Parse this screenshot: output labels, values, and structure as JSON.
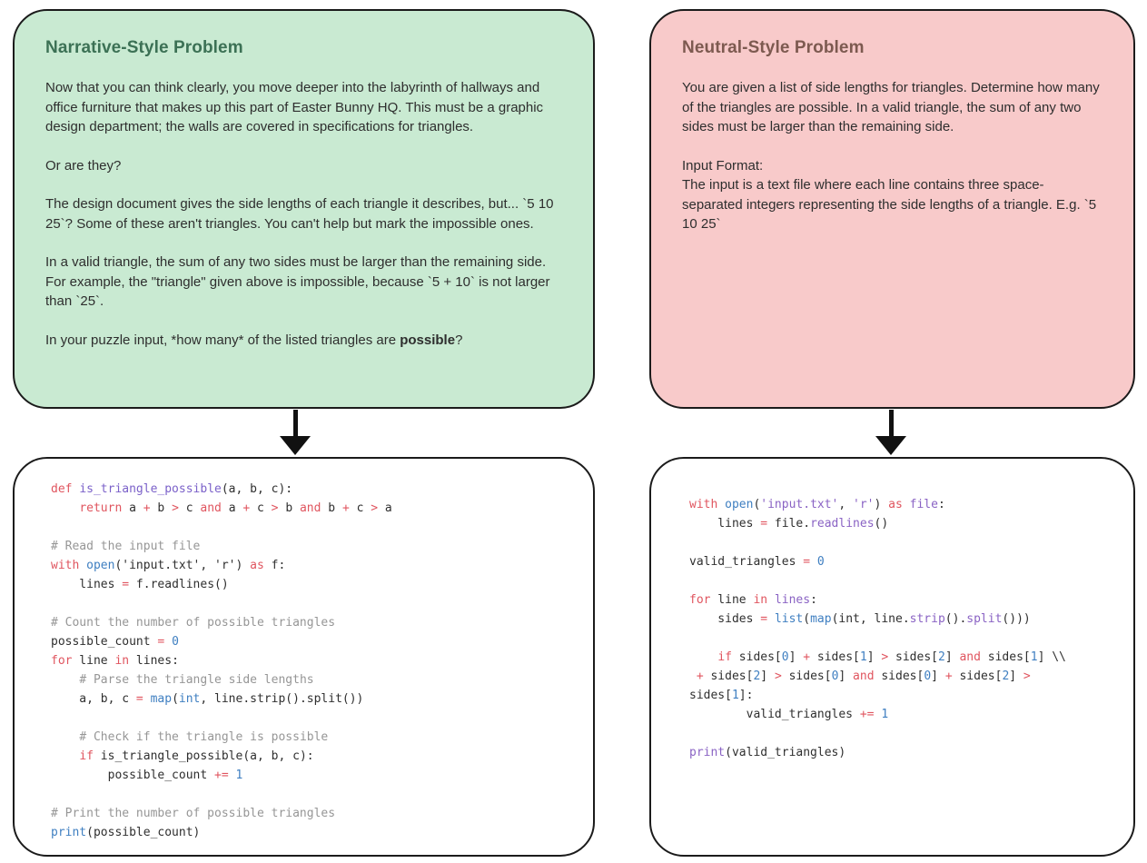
{
  "colors": {
    "narrative_panel_bg": "#c9ead2",
    "narrative_title": "#3c7155",
    "neutral_panel_bg": "#f8caca",
    "neutral_title": "#7d5a50",
    "body_text": "#2e2e2e",
    "panel_border": "#1b1b1b",
    "code_keyword_red": "#e0555f",
    "code_builtin_blue": "#3f7fc1",
    "code_purple": "#8a63c4",
    "code_comment_gray": "#969696",
    "code_default": "#2f2f2f",
    "arrow_black": "#111111"
  },
  "narrative_panel": {
    "title": "Narrative-Style Problem",
    "paragraphs": [
      [
        {
          "t": "Now that you can think clearly, you move deeper into the labyrinth of hallways and office furniture that makes up this part of Easter Bunny HQ. This must be a graphic design department; the walls are covered in specifications for triangles."
        }
      ],
      [
        {
          "t": "Or are they?"
        }
      ],
      [
        {
          "t": "The design document gives the side lengths of each triangle it describes, but... `5 10 25`? Some of these aren't triangles. You can't help but mark the impossible ones."
        }
      ],
      [
        {
          "t": "In a valid triangle, the sum of any two sides must be larger than the remaining side. For example, the \"triangle\" given above is impossible, because `5 + 10` is not larger than `25`."
        }
      ],
      [
        {
          "t": "In your puzzle input, *how many* of the listed triangles are "
        },
        {
          "t": "possible",
          "b": true
        },
        {
          "t": "?"
        }
      ]
    ]
  },
  "neutral_panel": {
    "title": "Neutral-Style Problem",
    "paragraphs": [
      [
        {
          "t": "You are given a list of side lengths for triangles. Determine how many of the triangles are possible. In a valid triangle, the sum of any two sides must be larger than the remaining side."
        }
      ],
      [
        {
          "t": "Input Format:"
        },
        {
          "br": true
        },
        {
          "t": "The input is a text file where each line contains three space-separated integers representing the side lengths of a triangle. E.g. `5  10  25`"
        }
      ]
    ]
  },
  "narrative_code": {
    "lines": [
      [
        [
          "kw",
          "def"
        ],
        [
          "plain",
          " "
        ],
        [
          "def",
          "is_triangle_possible"
        ],
        [
          "plain",
          "(a, b, c):"
        ]
      ],
      [
        [
          "plain",
          "    "
        ],
        [
          "kw",
          "return"
        ],
        [
          "plain",
          " a "
        ],
        [
          "kw",
          "+"
        ],
        [
          "plain",
          " b "
        ],
        [
          "kw",
          ">"
        ],
        [
          "plain",
          " c "
        ],
        [
          "kw",
          "and"
        ],
        [
          "plain",
          " a "
        ],
        [
          "kw",
          "+"
        ],
        [
          "plain",
          " c "
        ],
        [
          "kw",
          ">"
        ],
        [
          "plain",
          " b "
        ],
        [
          "kw",
          "and"
        ],
        [
          "plain",
          " b "
        ],
        [
          "kw",
          "+"
        ],
        [
          "plain",
          " c "
        ],
        [
          "kw",
          ">"
        ],
        [
          "plain",
          " a"
        ]
      ],
      [],
      [
        [
          "com",
          "# Read the input file"
        ]
      ],
      [
        [
          "kw",
          "with"
        ],
        [
          "plain",
          " "
        ],
        [
          "fn",
          "open"
        ],
        [
          "plain",
          "('input.txt', 'r') "
        ],
        [
          "kw",
          "as"
        ],
        [
          "plain",
          " f:"
        ]
      ],
      [
        [
          "plain",
          "    lines "
        ],
        [
          "kw",
          "="
        ],
        [
          "plain",
          " f.readlines()"
        ]
      ],
      [],
      [
        [
          "com",
          "# Count the number of possible triangles"
        ]
      ],
      [
        [
          "plain",
          "possible_count "
        ],
        [
          "kw",
          "="
        ],
        [
          "plain",
          " "
        ],
        [
          "num",
          "0"
        ]
      ],
      [
        [
          "kw",
          "for"
        ],
        [
          "plain",
          " line "
        ],
        [
          "kw",
          "in"
        ],
        [
          "plain",
          " lines:"
        ]
      ],
      [
        [
          "plain",
          "    "
        ],
        [
          "com",
          "# Parse the triangle side lengths"
        ]
      ],
      [
        [
          "plain",
          "    a, b, c "
        ],
        [
          "kw",
          "="
        ],
        [
          "plain",
          " "
        ],
        [
          "fn",
          "map"
        ],
        [
          "plain",
          "("
        ],
        [
          "fn",
          "int"
        ],
        [
          "plain",
          ", line.strip().split())"
        ]
      ],
      [],
      [
        [
          "plain",
          "    "
        ],
        [
          "com",
          "# Check if the triangle is possible"
        ]
      ],
      [
        [
          "plain",
          "    "
        ],
        [
          "kw",
          "if"
        ],
        [
          "plain",
          " is_triangle_possible(a, b, c):"
        ]
      ],
      [
        [
          "plain",
          "        possible_count "
        ],
        [
          "kw",
          "+="
        ],
        [
          "plain",
          " "
        ],
        [
          "num",
          "1"
        ]
      ],
      [],
      [
        [
          "com",
          "# Print the number of possible triangles"
        ]
      ],
      [
        [
          "fn",
          "print"
        ],
        [
          "plain",
          "(possible_count)"
        ]
      ]
    ]
  },
  "neutral_code": {
    "lines": [
      [
        [
          "kw",
          "with"
        ],
        [
          "plain",
          " "
        ],
        [
          "fn",
          "open"
        ],
        [
          "plain",
          "("
        ],
        [
          "pur",
          "'input.txt'"
        ],
        [
          "plain",
          ", "
        ],
        [
          "pur",
          "'r'"
        ],
        [
          "plain",
          ") "
        ],
        [
          "kw",
          "as"
        ],
        [
          "plain",
          " "
        ],
        [
          "pur",
          "file"
        ],
        [
          "plain",
          ":"
        ]
      ],
      [
        [
          "plain",
          "    lines "
        ],
        [
          "kw",
          "="
        ],
        [
          "plain",
          " file."
        ],
        [
          "pur",
          "readlines"
        ],
        [
          "plain",
          "()"
        ]
      ],
      [],
      [
        [
          "plain",
          "valid_triangles "
        ],
        [
          "kw",
          "="
        ],
        [
          "plain",
          " "
        ],
        [
          "num",
          "0"
        ]
      ],
      [],
      [
        [
          "kw",
          "for"
        ],
        [
          "plain",
          " line "
        ],
        [
          "kw",
          "in"
        ],
        [
          "plain",
          " "
        ],
        [
          "pur",
          "lines"
        ],
        [
          "plain",
          ":"
        ]
      ],
      [
        [
          "plain",
          "    sides "
        ],
        [
          "kw",
          "="
        ],
        [
          "plain",
          " "
        ],
        [
          "fn",
          "list"
        ],
        [
          "plain",
          "("
        ],
        [
          "fn",
          "map"
        ],
        [
          "plain",
          "(int, line."
        ],
        [
          "pur",
          "strip"
        ],
        [
          "plain",
          "()."
        ],
        [
          "pur",
          "split"
        ],
        [
          "plain",
          "()))"
        ]
      ],
      [],
      [
        [
          "plain",
          "    "
        ],
        [
          "kw",
          "if"
        ],
        [
          "plain",
          " sides["
        ],
        [
          "num",
          "0"
        ],
        [
          "plain",
          "] "
        ],
        [
          "kw",
          "+"
        ],
        [
          "plain",
          " sides["
        ],
        [
          "num",
          "1"
        ],
        [
          "plain",
          "] "
        ],
        [
          "kw",
          ">"
        ],
        [
          "plain",
          " sides["
        ],
        [
          "num",
          "2"
        ],
        [
          "plain",
          "] "
        ],
        [
          "kw",
          "and"
        ],
        [
          "plain",
          " sides["
        ],
        [
          "num",
          "1"
        ],
        [
          "plain",
          "] \\\\"
        ]
      ],
      [
        [
          "plain",
          " "
        ],
        [
          "kw",
          "+"
        ],
        [
          "plain",
          " sides["
        ],
        [
          "num",
          "2"
        ],
        [
          "plain",
          "] "
        ],
        [
          "kw",
          ">"
        ],
        [
          "plain",
          " sides["
        ],
        [
          "num",
          "0"
        ],
        [
          "plain",
          "] "
        ],
        [
          "kw",
          "and"
        ],
        [
          "plain",
          " sides["
        ],
        [
          "num",
          "0"
        ],
        [
          "plain",
          "] "
        ],
        [
          "kw",
          "+"
        ],
        [
          "plain",
          " sides["
        ],
        [
          "num",
          "2"
        ],
        [
          "plain",
          "] "
        ],
        [
          "kw",
          ">"
        ]
      ],
      [
        [
          "plain",
          "sides["
        ],
        [
          "num",
          "1"
        ],
        [
          "plain",
          "]:"
        ]
      ],
      [
        [
          "plain",
          "        valid_triangles "
        ],
        [
          "kw",
          "+="
        ],
        [
          "plain",
          " "
        ],
        [
          "num",
          "1"
        ]
      ],
      [],
      [
        [
          "pur",
          "print"
        ],
        [
          "plain",
          "(valid_triangles)"
        ]
      ]
    ]
  }
}
